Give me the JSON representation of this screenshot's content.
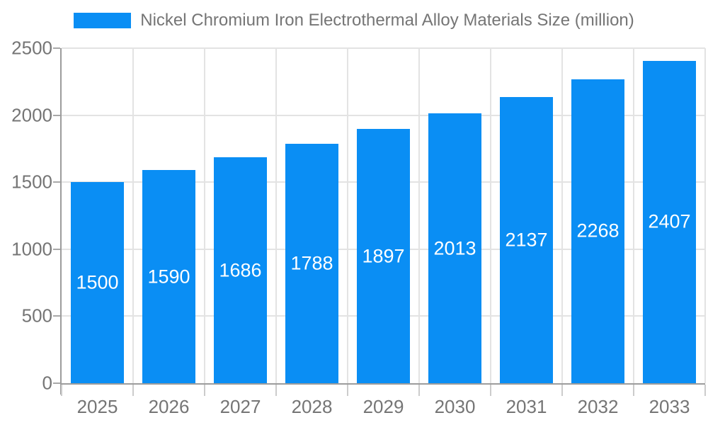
{
  "chart_data": {
    "type": "bar",
    "title": "Nickel Chromium Iron Electrothermal Alloy Materials Size (million)",
    "legend": {
      "position": "top",
      "entries": [
        "Nickel Chromium Iron Electrothermal Alloy Materials Size (million)"
      ]
    },
    "categories": [
      "2025",
      "2026",
      "2027",
      "2028",
      "2029",
      "2030",
      "2031",
      "2032",
      "2033"
    ],
    "series": [
      {
        "name": "Nickel Chromium Iron Electrothermal Alloy Materials Size (million)",
        "values": [
          1500,
          1590,
          1686,
          1788,
          1897,
          2013,
          2137,
          2268,
          2407
        ]
      }
    ],
    "bar_value_labels": [
      "1500",
      "1590",
      "1686",
      "1788",
      "1897",
      "2013",
      "2137",
      "2268",
      "2407"
    ],
    "xlabel": "",
    "ylabel": "",
    "ylim": [
      0,
      2500
    ],
    "yticks": [
      0,
      500,
      1000,
      1500,
      2000,
      2500
    ],
    "grid": true,
    "colors": {
      "bar": "#0a8ef4",
      "bar_label_text": "#ffffff",
      "legend_text": "#757575",
      "axis_tick_text": "#757575",
      "grid_line": "#e3e3e3",
      "axis_line": "#9c9c9c",
      "x_tick_mark": "#cccccc",
      "y_tick_mark": "#a8a8a8",
      "background": "#ffffff"
    }
  }
}
